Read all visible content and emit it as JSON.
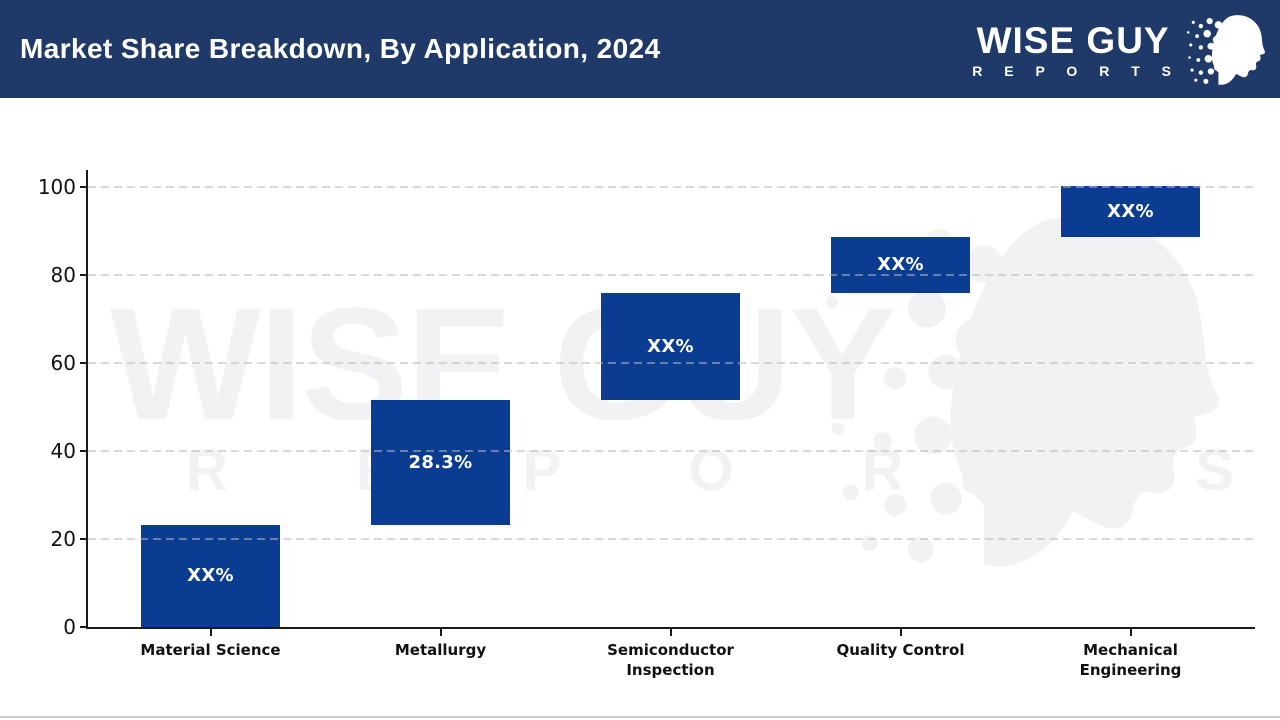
{
  "header": {
    "title": "Market Share Breakdown, By Application, 2024",
    "logo": {
      "line1": "WISE GUY",
      "line2": "R E P O R T S"
    }
  },
  "watermark": {
    "line1": "WISE GUY",
    "line2": "R E P O R T S"
  },
  "colors": {
    "header_bg": "#1f3a68",
    "bar": "#0a3d91",
    "bar_label": "#ffffff",
    "watermark": "#f2f2f4",
    "gridline": "#d9d9d9",
    "axis": "#1a1a1a"
  },
  "chart_data": {
    "type": "bar",
    "subtype": "waterfall-floating-bars",
    "title": "Market Share Breakdown, By Application, 2024",
    "xlabel": "",
    "ylabel": "",
    "ylim": [
      0,
      105
    ],
    "yticks": [
      0,
      20,
      40,
      60,
      80,
      100
    ],
    "grid": "horizontal-dashed",
    "legend": "none",
    "categories": [
      "Material Science",
      "Metallurgy",
      "Semiconductor Inspection",
      "Quality Control",
      "Mechanical Engineering"
    ],
    "category_lines": [
      [
        "Material Science"
      ],
      [
        "Metallurgy"
      ],
      [
        "Semiconductor",
        "Inspection"
      ],
      [
        "Quality Control"
      ],
      [
        "Mechanical",
        "Engineering"
      ]
    ],
    "segments": [
      {
        "category": "Material Science",
        "start": 0,
        "end": 23.2,
        "value": 23.2,
        "label": "XX%"
      },
      {
        "category": "Metallurgy",
        "start": 23.2,
        "end": 51.5,
        "value": 28.3,
        "label": "28.3%"
      },
      {
        "category": "Semiconductor Inspection",
        "start": 51.5,
        "end": 76.0,
        "value": 24.5,
        "label": "XX%"
      },
      {
        "category": "Quality Control",
        "start": 76.0,
        "end": 88.7,
        "value": 12.7,
        "label": "XX%"
      },
      {
        "category": "Mechanical Engineering",
        "start": 88.7,
        "end": 100.2,
        "value": 11.5,
        "label": "XX%"
      }
    ]
  }
}
